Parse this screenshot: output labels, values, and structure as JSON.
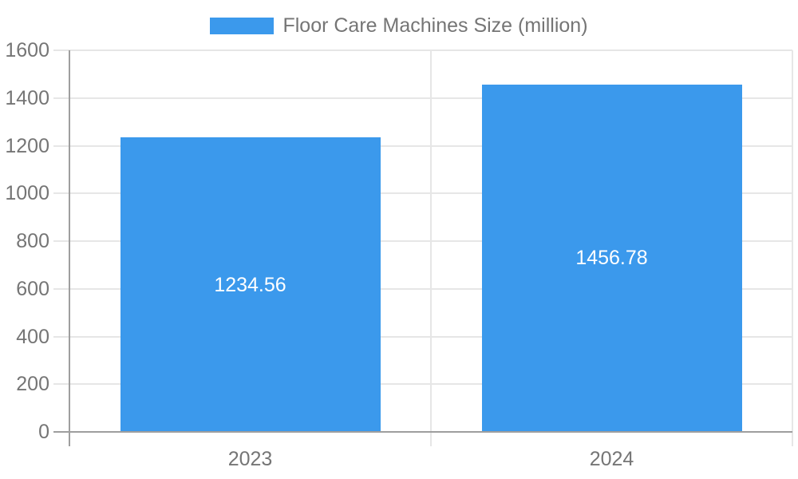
{
  "chart_data": {
    "type": "bar",
    "title": "",
    "xlabel": "",
    "ylabel": "",
    "categories": [
      "2023",
      "2024"
    ],
    "series": [
      {
        "name": "Floor Care Machines Size (million)",
        "values": [
          1234.56,
          1456.78
        ]
      }
    ],
    "value_labels": [
      "1234.56",
      "1456.78"
    ],
    "ylim": [
      0,
      1600
    ],
    "ytick_interval": 200,
    "ytick_labels": [
      "0",
      "200",
      "400",
      "600",
      "800",
      "1000",
      "1200",
      "1400",
      "1600"
    ],
    "grid": true,
    "legend_position": "top-center",
    "colors": {
      "bar": "#3B99EC",
      "axis": "#9E9E9E",
      "gridline": "#E6E6E6",
      "tick_label": "#757575",
      "legend_text": "#757575",
      "value_label": "#FFFFFF",
      "background": "#FFFFFF"
    }
  }
}
